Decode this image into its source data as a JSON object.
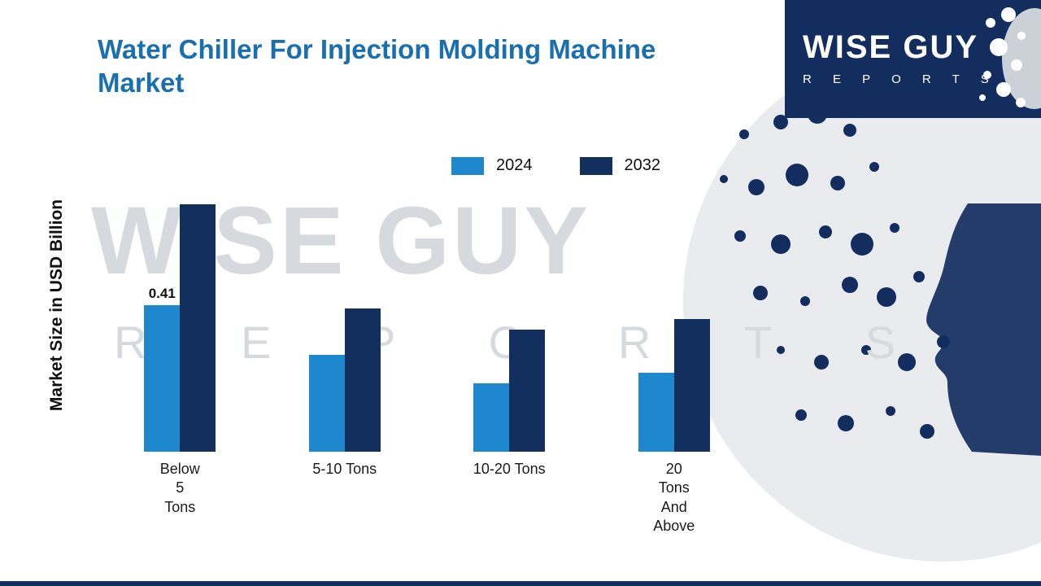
{
  "title": "Water Chiller For Injection Molding Machine Market",
  "logo": {
    "line1": "WISE GUY",
    "line2": "R E P O R T S"
  },
  "watermark": {
    "line1": "WISE GUY",
    "line2": "R E P O R T S"
  },
  "colors": {
    "title": "#1a6faf",
    "series_2024": "#1e88ce",
    "series_2032": "#132f5e",
    "logo_background": "#122d5e",
    "watermark": "#d6d9dd",
    "circle_background": "#e9ebee"
  },
  "chart_data": {
    "type": "bar",
    "title": "Water Chiller For Injection Molding Machine Market",
    "xlabel": "",
    "ylabel": "Market Size in USD Billion",
    "categories": [
      "Below\n5\nTons",
      "5-10 Tons",
      "10-20 Tons",
      "20\nTons\nAnd\nAbove"
    ],
    "series": [
      {
        "name": "2024",
        "color": "#1e88ce",
        "values": [
          0.41,
          0.27,
          0.19,
          0.22
        ],
        "data_labels": [
          "0.41",
          "",
          "",
          ""
        ]
      },
      {
        "name": "2032",
        "color": "#132f5e",
        "values": [
          0.69,
          0.4,
          0.34,
          0.37
        ],
        "data_labels": [
          "",
          "",
          "",
          ""
        ]
      }
    ],
    "ylim": [
      0,
      0.75
    ],
    "grid": false,
    "legend_position": "top-center",
    "unit": "USD Billion"
  }
}
